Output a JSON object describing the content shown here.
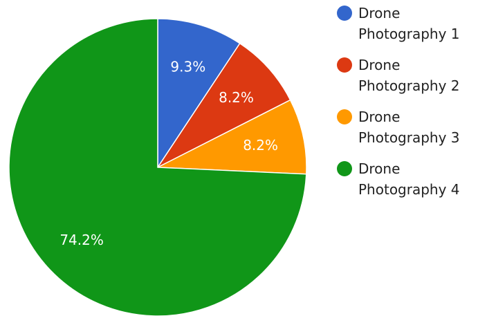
{
  "chart_data": {
    "type": "pie",
    "title": "",
    "start_angle_deg": 0,
    "direction": "clockwise",
    "legend_position": "right",
    "slices": [
      {
        "label": "Drone Photography 1",
        "legend_lines": [
          "Drone",
          "Photography 1"
        ],
        "value": 9.3,
        "display": "9.3%",
        "color": "#3366cc"
      },
      {
        "label": "Drone Photography 2",
        "legend_lines": [
          "Drone",
          "Photography 2"
        ],
        "value": 8.2,
        "display": "8.2%",
        "color": "#dc3912"
      },
      {
        "label": "Drone Photography 3",
        "legend_lines": [
          "Drone",
          "Photography 3"
        ],
        "value": 8.2,
        "display": "8.2%",
        "color": "#ff9900"
      },
      {
        "label": "Drone Photography 4",
        "legend_lines": [
          "Drone",
          "Photography 4"
        ],
        "value": 74.2,
        "display": "74.2%",
        "color": "#109618"
      }
    ]
  }
}
